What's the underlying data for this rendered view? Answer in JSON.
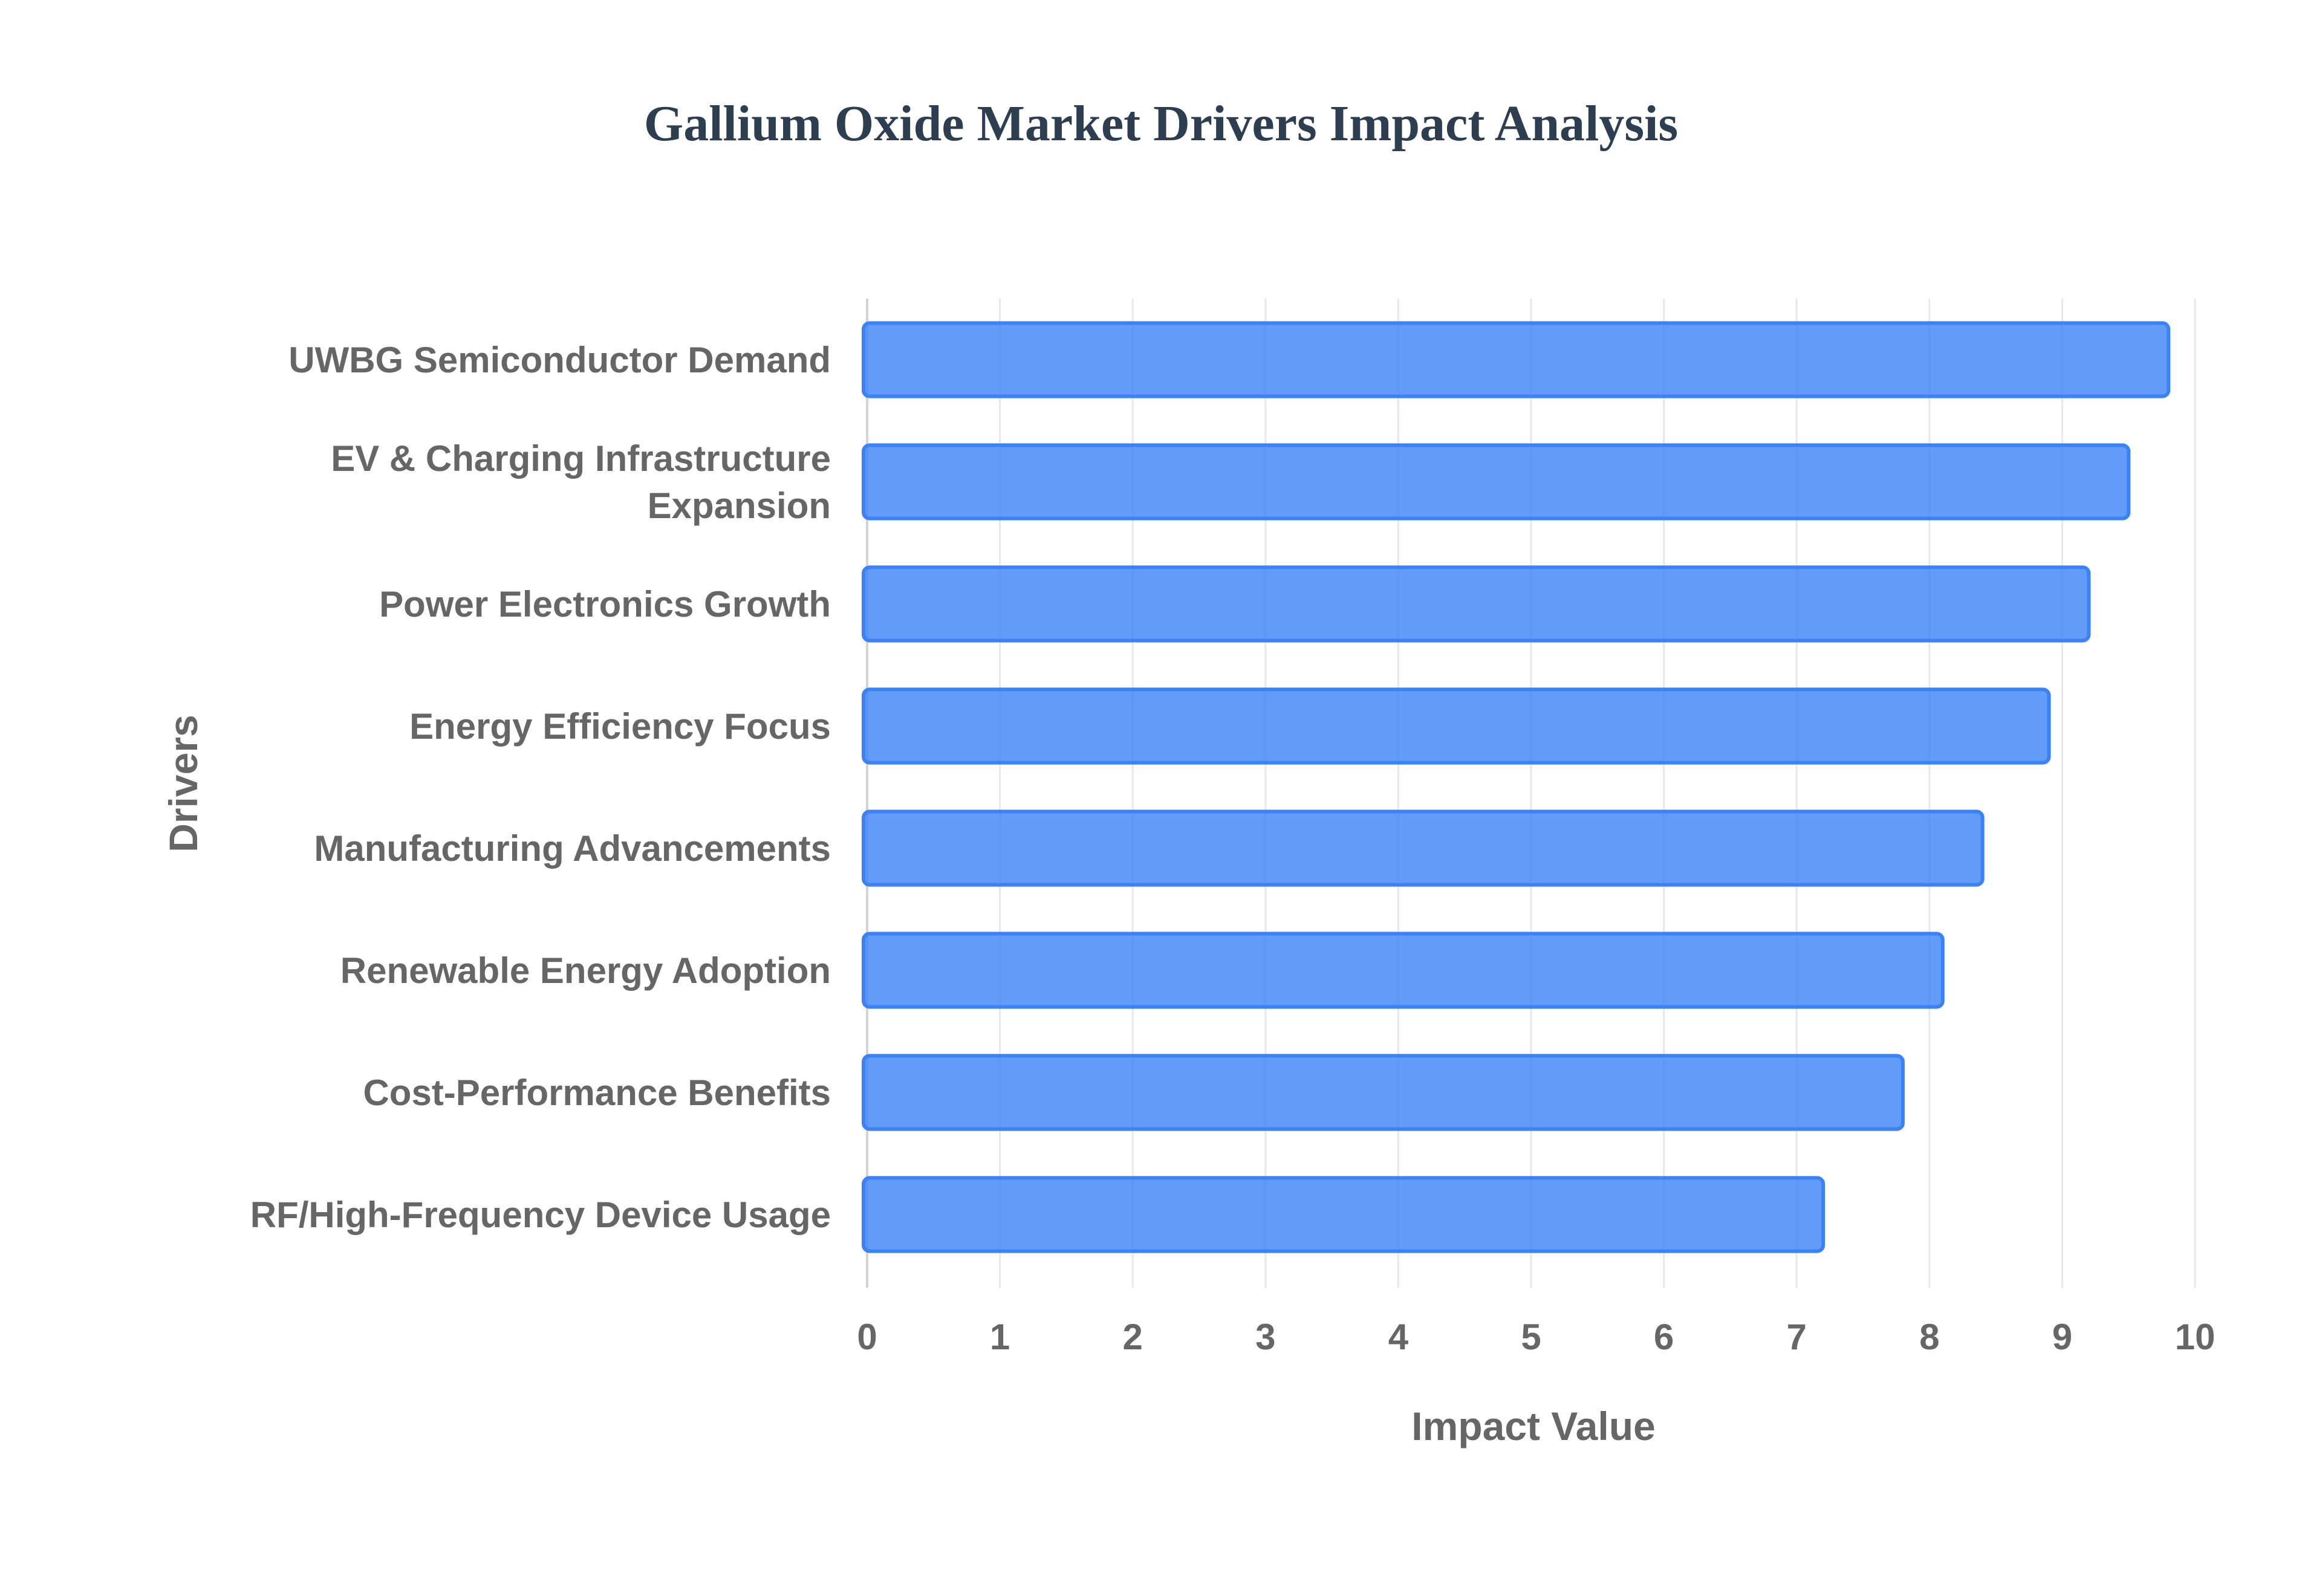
{
  "chart_data": {
    "type": "bar",
    "orientation": "horizontal",
    "title": "Gallium Oxide Market Drivers Impact Analysis",
    "xlabel": "Impact Value",
    "ylabel": "Drivers",
    "categories": [
      [
        "UWBG Semiconductor Demand"
      ],
      [
        "EV & Charging Infrastructure",
        "Expansion"
      ],
      [
        "Power Electronics Growth"
      ],
      [
        "Energy Efficiency Focus"
      ],
      [
        "Manufacturing Advancements"
      ],
      [
        "Renewable Energy Adoption"
      ],
      [
        "Cost-Performance Benefits"
      ],
      [
        "RF/High-Frequency Device Usage"
      ]
    ],
    "values": [
      9.8,
      9.5,
      9.2,
      8.9,
      8.4,
      8.1,
      7.8,
      7.2
    ],
    "xlim": [
      0,
      10
    ],
    "xticks": [
      "0",
      "1",
      "2",
      "3",
      "4",
      "5",
      "6",
      "7",
      "8",
      "9",
      "10"
    ],
    "grid": true,
    "legend": "none",
    "colors": {
      "bar_fill": "#3b82f6",
      "bar_border": "#3b82f6",
      "title": "#2c3e50",
      "label": "#666666",
      "grid": "#e8e8e8"
    }
  }
}
